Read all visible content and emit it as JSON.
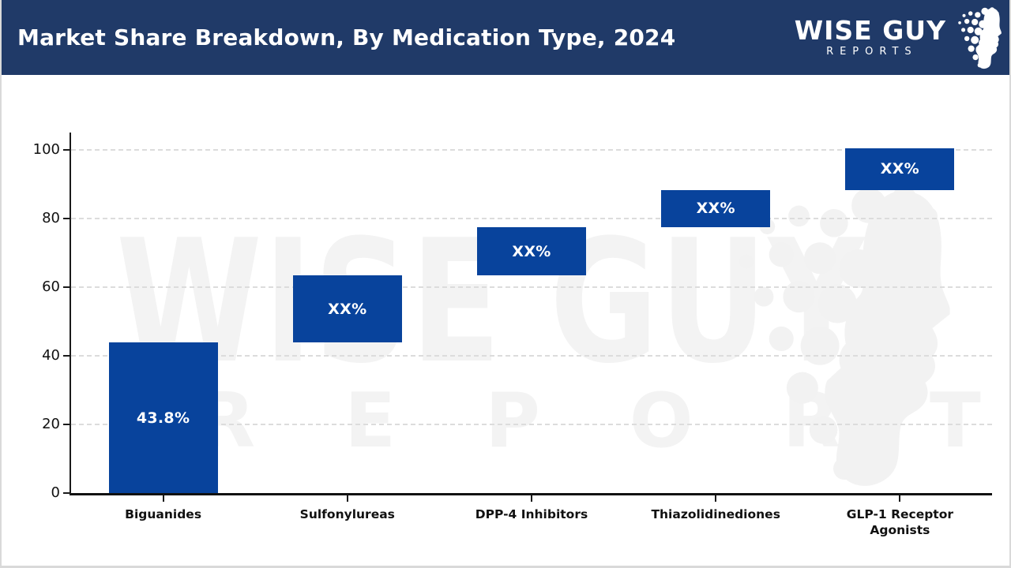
{
  "header": {
    "title": "Market Share Breakdown, By Medication Type, 2024",
    "logo": {
      "wordmark": "WISE GUY",
      "subtext": "REPORTS",
      "face_icon": "dotted-head-profile"
    }
  },
  "watermark": {
    "line1": "WISE GUY",
    "line2": "R E P O R T S",
    "face_icon": "dotted-head-profile"
  },
  "colors": {
    "header_bg": "#203a68",
    "bar": "#08439c",
    "grid": "#dcdcdc",
    "axis": "#1a1a1a",
    "bar_label_text": "#ffffff",
    "watermark": "#f3f3f3"
  },
  "chart_data": {
    "type": "bar",
    "subtype": "waterfall",
    "title": "Market Share Breakdown, By Medication Type, 2024",
    "xlabel": "",
    "ylabel": "",
    "categories": [
      "Biguanides",
      "Sulfonylureas",
      "DPP-4 Inhibitors",
      "Thiazolidinediones",
      "GLP-1 Receptor\nAgonists"
    ],
    "segments": [
      {
        "category": "Biguanides",
        "start": 0,
        "end": 43.8,
        "value": 43.8,
        "label": "43.8%"
      },
      {
        "category": "Sulfonylureas",
        "start": 43.8,
        "end": 63.4,
        "value": 19.6,
        "label": "XX%"
      },
      {
        "category": "DPP-4 Inhibitors",
        "start": 63.4,
        "end": 77.5,
        "value": 14.1,
        "label": "XX%"
      },
      {
        "category": "Thiazolidinediones",
        "start": 77.5,
        "end": 88.3,
        "value": 10.8,
        "label": "XX%"
      },
      {
        "category": "GLP-1 Receptor Agonists",
        "start": 88.3,
        "end": 100.5,
        "value": 12.2,
        "label": "XX%"
      }
    ],
    "yticks": [
      0,
      20,
      40,
      60,
      80,
      100
    ],
    "ylim": [
      0,
      105
    ],
    "grid": "horizontal-dashed",
    "legend": null
  }
}
